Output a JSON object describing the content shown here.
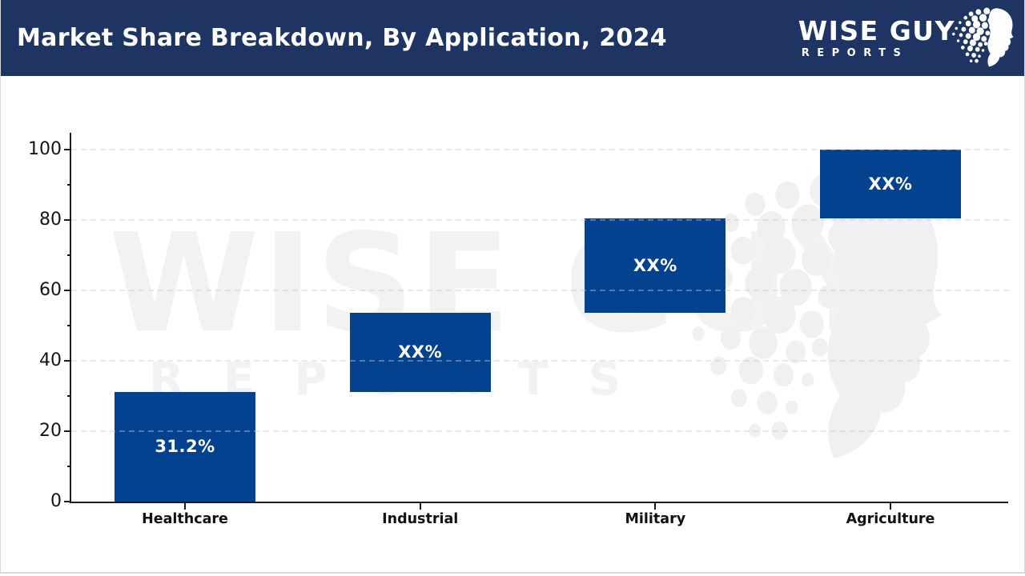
{
  "header": {
    "title": "Market Share Breakdown, By Application, 2024",
    "logo_line1": "WISE GUY",
    "logo_line2": "REPORTS",
    "bg_color": "#1e3563"
  },
  "watermark": {
    "line1": "WISE GUY",
    "line2": "REPORTS"
  },
  "chart_data": {
    "type": "bar",
    "subtype": "waterfall-floating-segments",
    "title": "Market Share Breakdown, By Application, 2024",
    "categories": [
      "Healthcare",
      "Industrial",
      "Military",
      "Agriculture"
    ],
    "segments": [
      {
        "category": "Healthcare",
        "start": 0,
        "end": 31.2,
        "label": "31.2%"
      },
      {
        "category": "Industrial",
        "start": 31.2,
        "end": 53.6,
        "label": "XX%"
      },
      {
        "category": "Military",
        "start": 53.6,
        "end": 80.4,
        "label": "XX%"
      },
      {
        "category": "Agriculture",
        "start": 80.4,
        "end": 100,
        "label": "XX%"
      }
    ],
    "ylim": [
      0,
      100
    ],
    "yticks": [
      0,
      20,
      40,
      60,
      80,
      100
    ],
    "minor_yticks": [
      10,
      30,
      50,
      70,
      90
    ],
    "grid": "horizontal-dashed",
    "legend": "none",
    "bar_color": "#04418f",
    "value_label_color": "#ffffff"
  }
}
